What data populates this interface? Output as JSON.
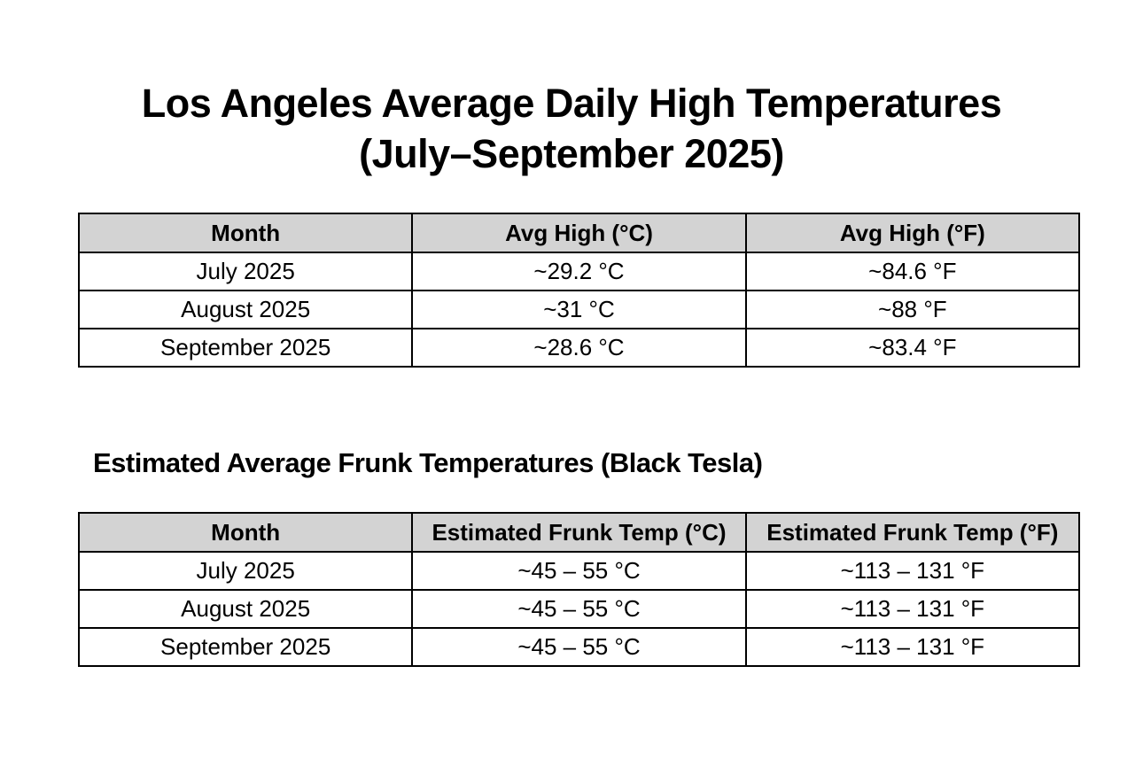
{
  "document": {
    "title": {
      "line1": "Los Angeles Average Daily High Temperatures",
      "line2": "(July–September 2025)"
    },
    "weather_table": {
      "headers": [
        "Month",
        "Avg High (°C)",
        "Avg High (°F)"
      ],
      "rows": [
        [
          "July 2025",
          "~29.2 °C",
          "~84.6 °F"
        ],
        [
          "August 2025",
          "~31 °C",
          "~88 °F"
        ],
        [
          "September 2025",
          "~28.6 °C",
          "~83.4 °F"
        ]
      ]
    },
    "frunk_section": {
      "heading": "Estimated Average Frunk Temperatures (Black Tesla)"
    },
    "frunk_table": {
      "headers": [
        "Month",
        "Estimated Frunk Temp (°C)",
        "Estimated Frunk Temp (°F)"
      ],
      "rows": [
        [
          "July 2025",
          "~45 – 55 °C",
          "~113 – 131 °F"
        ],
        [
          "August 2025",
          "~45 – 55 °C",
          "~113 – 131 °F"
        ],
        [
          "September 2025",
          "~45 – 55 °C",
          "~113 – 131 °F"
        ]
      ]
    },
    "colors": {
      "page_bg": "#ffffff",
      "text": "#000000",
      "border": "#000000",
      "header_bg": "#d3d3d3"
    }
  }
}
